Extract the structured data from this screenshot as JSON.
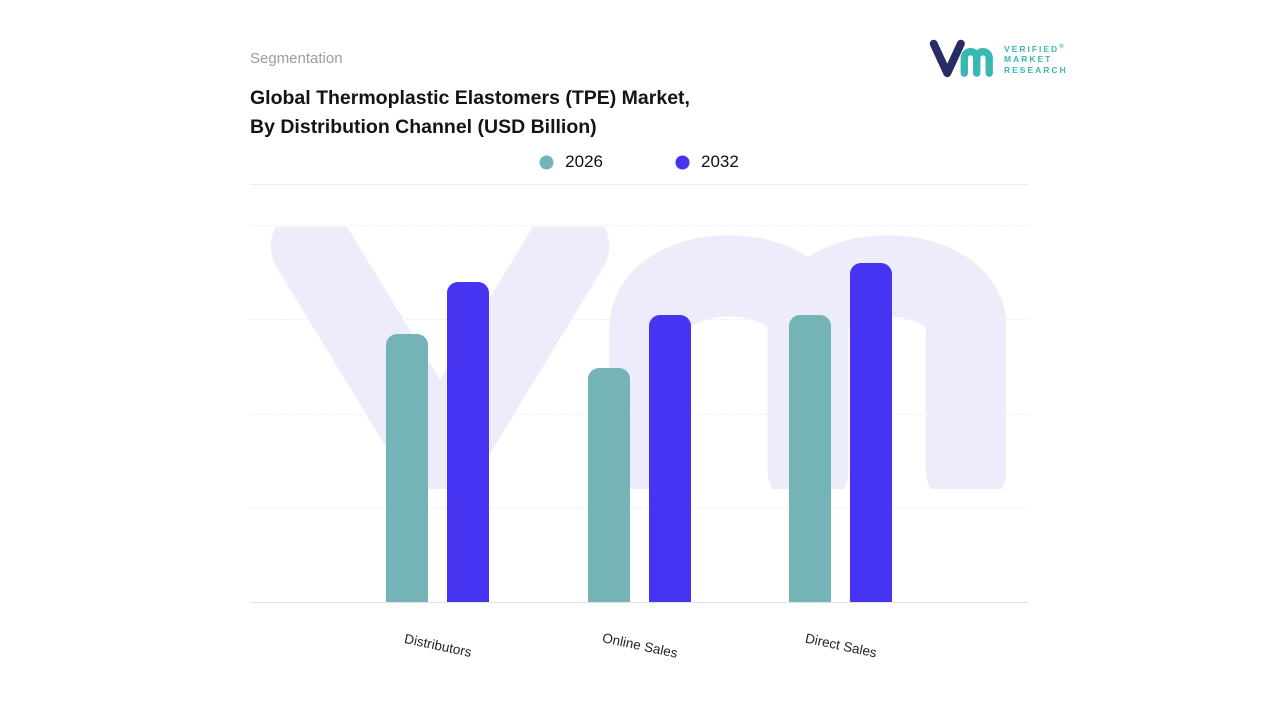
{
  "header": {
    "eyebrow": "Segmentation",
    "title_line1": "Global Thermoplastic Elastomers (TPE) Market,",
    "title_line2": "By Distribution Channel (USD Billion)"
  },
  "logo": {
    "lines": [
      "VERIFIED",
      "MARKET",
      "RESEARCH"
    ],
    "registered": "®",
    "glyph_color_primary": "#272c63",
    "glyph_color_secondary": "#39b7b1",
    "text_color": "#39b7b1"
  },
  "legend": [
    {
      "label": "2026",
      "color": "#74b3b6"
    },
    {
      "label": "2032",
      "color": "#4733f2"
    }
  ],
  "watermark_color": "#ececfb",
  "chart_data": {
    "type": "bar",
    "title": "Global Thermoplastic Elastomers (TPE) Market, By Distribution Channel (USD Billion)",
    "categories": [
      "Distributors",
      "Online Sales",
      "Direct Sales"
    ],
    "series": [
      {
        "name": "2026",
        "color": "#74b3b6",
        "values": [
          71,
          62,
          76
        ]
      },
      {
        "name": "2032",
        "color": "#4733f2",
        "values": [
          85,
          76,
          90
        ]
      }
    ],
    "xlabel": "Distribution Channel",
    "ylabel": "USD Billion",
    "ylim": [
      0,
      100
    ],
    "value_axis_labels_visible": false,
    "grid": "faint dashed horizontal lines",
    "legend_position": "top-center"
  }
}
